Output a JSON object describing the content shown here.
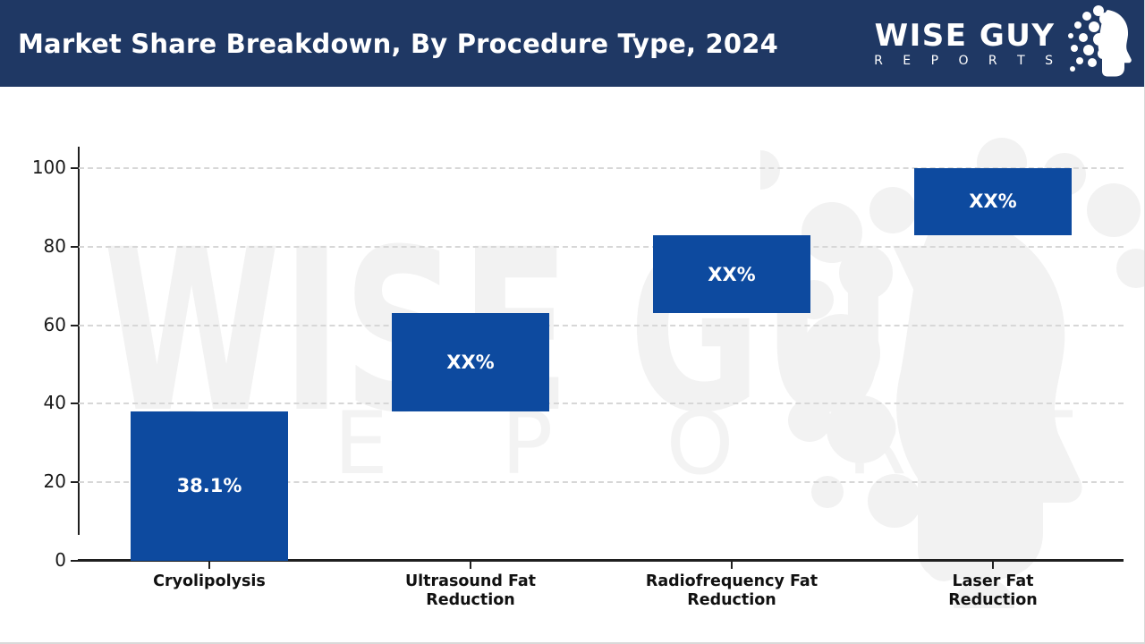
{
  "header": {
    "title": "Market Share Breakdown, By Procedure Type, 2024",
    "logo": {
      "wordmark": "WISE GUY",
      "subtext": "R E P O R T S"
    }
  },
  "watermark": {
    "line1": "WISE GUY",
    "line2": "R E P O R T S"
  },
  "chart_data": {
    "type": "bar",
    "subtype": "floating-segment-waterfall",
    "title": "Market Share Breakdown, By Procedure Type, 2024",
    "xlabel": "",
    "ylabel": "",
    "ylim": [
      0,
      100
    ],
    "yticks": [
      0,
      20,
      40,
      60,
      80,
      100
    ],
    "grid": true,
    "legend_position": "none",
    "bar_color": "#0d4a9f",
    "bar_label_color": "#ffffff",
    "categories": [
      "Cryolipolysis",
      "Ultrasound Fat Reduction",
      "Radiofrequency Fat Reduction",
      "Laser Fat Reduction"
    ],
    "bars": [
      {
        "category": "Cryolipolysis",
        "category_lines": [
          "Cryolipolysis"
        ],
        "start": 0,
        "end": 38.1,
        "label": "38.1%"
      },
      {
        "category": "Ultrasound Fat Reduction",
        "category_lines": [
          "Ultrasound Fat",
          "Reduction"
        ],
        "start": 38.1,
        "end": 63,
        "label": "XX%"
      },
      {
        "category": "Radiofrequency Fat Reduction",
        "category_lines": [
          "Radiofrequency Fat",
          "Reduction"
        ],
        "start": 63,
        "end": 83,
        "label": "XX%"
      },
      {
        "category": "Laser Fat Reduction",
        "category_lines": [
          "Laser Fat",
          "Reduction"
        ],
        "start": 83,
        "end": 100,
        "label": "XX%"
      }
    ]
  },
  "colors": {
    "header_bg": "#1f3864",
    "bar": "#0d4a9f",
    "grid": "#d7d7d7",
    "axis": "#1f1f1f",
    "watermark": "#f2f2f2",
    "text": "#111111"
  }
}
